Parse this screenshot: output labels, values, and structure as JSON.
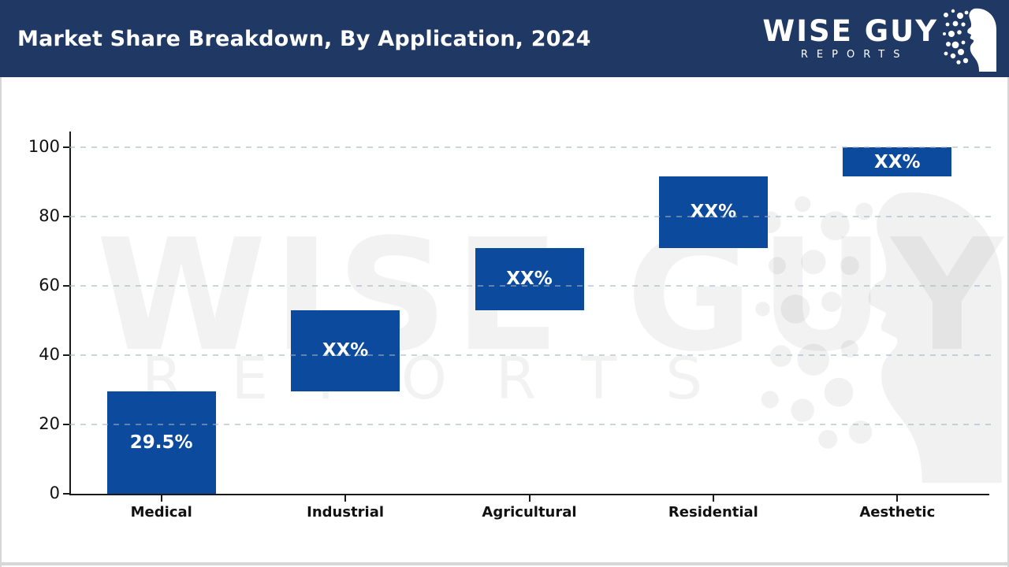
{
  "header": {
    "title": "Market Share Breakdown, By Application, 2024",
    "logo": {
      "line1": "WISE GUY",
      "line2": "REPORTS"
    }
  },
  "watermark": {
    "line1": "WISE GUY",
    "line2": "REPORTS"
  },
  "colors": {
    "header_bg": "#1f3864",
    "bar_fill": "#0c4a9e",
    "bar_label": "#ffffff",
    "axis": "#1a1a1a",
    "gridline": "#d9dce3",
    "border": "#d7d7d7",
    "background": "#ffffff"
  },
  "chart_data": {
    "type": "bar",
    "subtype": "floating-waterfall",
    "title": "Market Share Breakdown, By Application, 2024",
    "categories": [
      "Medical",
      "Industrial",
      "Agricultural",
      "Residential",
      "Aesthetic"
    ],
    "segments": [
      {
        "category": "Medical",
        "start": 0,
        "end": 29.5,
        "value": 29.5,
        "label": "29.5%"
      },
      {
        "category": "Industrial",
        "start": 29.5,
        "end": 53,
        "value": 23.5,
        "label": "XX%"
      },
      {
        "category": "Agricultural",
        "start": 53,
        "end": 71,
        "value": 18,
        "label": "XX%"
      },
      {
        "category": "Residential",
        "start": 71,
        "end": 91.5,
        "value": 20.5,
        "label": "XX%"
      },
      {
        "category": "Aesthetic",
        "start": 91.5,
        "end": 100,
        "value": 8.5,
        "label": "XX%"
      }
    ],
    "yticks": [
      0,
      20,
      40,
      60,
      80,
      100
    ],
    "ylim": [
      0,
      104.5
    ],
    "xlabel": "",
    "ylabel": "",
    "grid": "horizontal-dashed",
    "legend": "none"
  }
}
